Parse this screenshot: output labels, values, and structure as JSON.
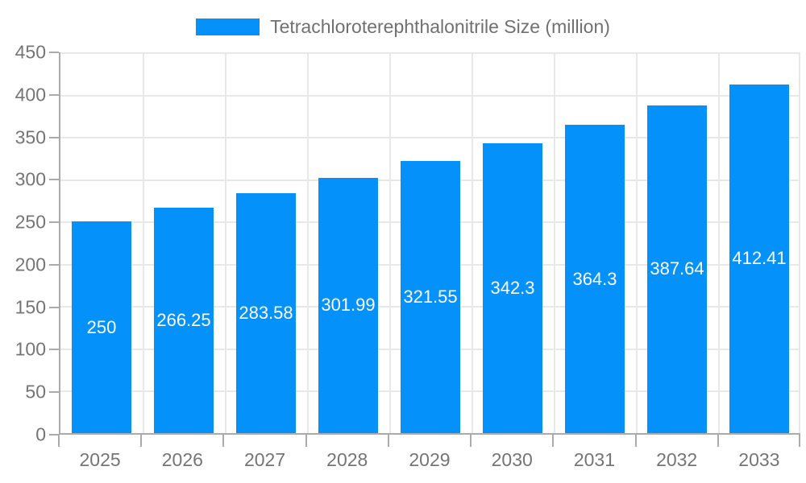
{
  "chart_data": {
    "type": "bar",
    "title": "Tetrachloroterephthalonitrile Size (million)",
    "legend_position": "top",
    "categories": [
      "2025",
      "2026",
      "2027",
      "2028",
      "2029",
      "2030",
      "2031",
      "2032",
      "2033"
    ],
    "series": [
      {
        "name": "Tetrachloroterephthalonitrile Size (million)",
        "values": [
          250,
          266.25,
          283.58,
          301.99,
          321.55,
          342.3,
          364.3,
          387.64,
          412.41
        ]
      }
    ],
    "xlabel": "",
    "ylabel": "",
    "ylim": [
      0,
      450
    ],
    "y_ticks": [
      0,
      50,
      100,
      150,
      200,
      250,
      300,
      350,
      400,
      450
    ],
    "grid": true,
    "bar_value_labels_shown": true,
    "colors": {
      "bar": "#0591FA",
      "bar_label": "#FFFFFF",
      "axis": "#ABABAB",
      "gridline": "#E8E8E8",
      "tick_label": "#757575",
      "legend_text": "#6F7072",
      "background": "#FFFFFF"
    }
  }
}
